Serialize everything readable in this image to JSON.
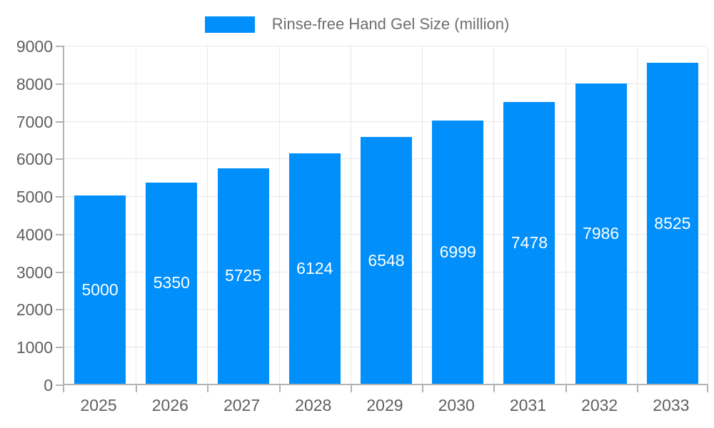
{
  "legend": {
    "label": "Rinse-free Hand Gel Size (million)"
  },
  "colors": {
    "bar": "#008FFB",
    "grid": "#e7e7e7",
    "axis": "#b3b3b3",
    "axis_label_text": "#5f5f5f",
    "legend_text": "#6e6e6e",
    "value_label_text": "#ffffff",
    "background": "#ffffff"
  },
  "chart_data": {
    "type": "bar",
    "title": "Rinse-free Hand Gel Size (million)",
    "categories": [
      "2025",
      "2026",
      "2027",
      "2028",
      "2029",
      "2030",
      "2031",
      "2032",
      "2033"
    ],
    "values": [
      5000,
      5350,
      5725,
      6124,
      6548,
      6999,
      7478,
      7986,
      8525
    ],
    "value_labels": [
      "5000",
      "5350",
      "5725",
      "6124",
      "6548",
      "6999",
      "7478",
      "7986",
      "8525"
    ],
    "yticks": [
      "0",
      "1000",
      "2000",
      "3000",
      "4000",
      "5000",
      "6000",
      "7000",
      "8000",
      "9000"
    ],
    "xlabel": "",
    "ylabel": "",
    "ylim": [
      0,
      9000
    ],
    "ytick_step": 1000,
    "grid": true,
    "legend_position": "top",
    "value_label_position": "center-of-bar"
  }
}
